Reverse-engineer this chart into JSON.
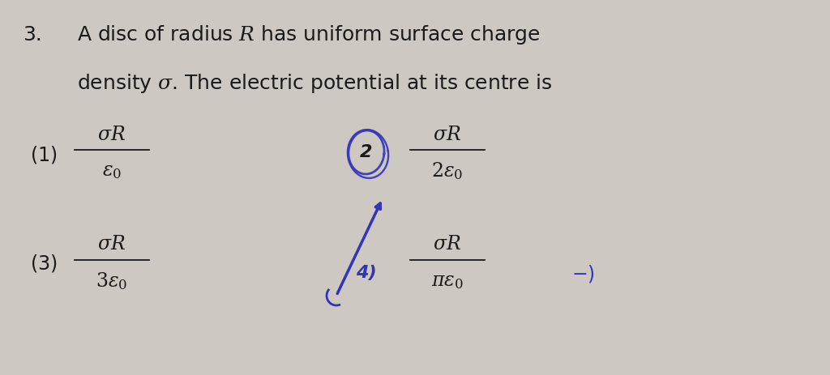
{
  "bg_color": "#cdc8c2",
  "text_color": "#1a1a1a",
  "question_number": "3.",
  "question_line1": "A disc of radius $R$ has uniform surface charge",
  "question_line2": "density $\\sigma$. The electric potential at its centre is",
  "opt1_label": "(1)",
  "opt1_num": "$\\sigma R$",
  "opt1_den": "$\\varepsilon_0$",
  "opt2_num": "$\\sigma R$",
  "opt2_den": "$2\\varepsilon_0$",
  "opt3_label": "(3)",
  "opt3_num": "$\\sigma R$",
  "opt3_den": "$3\\varepsilon_0$",
  "opt4_num": "$\\sigma R$",
  "opt4_den": "$\\pi\\varepsilon_0$",
  "title_fontsize": 17,
  "option_fontsize": 17,
  "label_fontsize": 17,
  "figsize": [
    10.24,
    4.63
  ],
  "dpi": 100
}
